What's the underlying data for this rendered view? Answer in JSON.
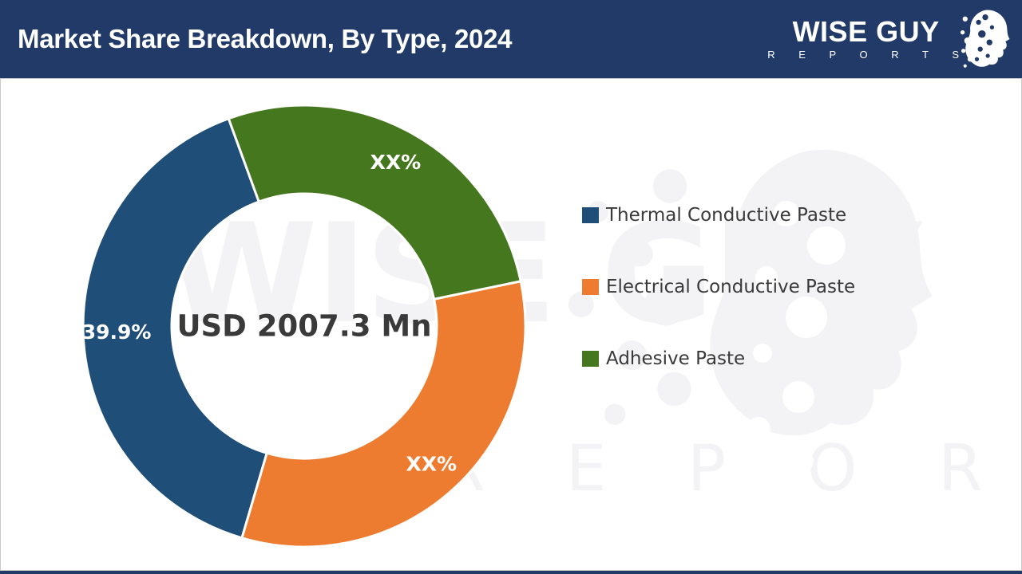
{
  "header": {
    "title": "Market Share Breakdown, By Type, 2024",
    "brand": {
      "name_line": "WISE GUY",
      "reports_line": "R E P O R T S"
    }
  },
  "watermark": {
    "line1": "WISE GUY",
    "line2": "R E P O R T S"
  },
  "chart_data": {
    "type": "pie",
    "subtype": "donut",
    "title": "Market Share Breakdown, By Type, 2024",
    "center_label": "USD 2007.3 Mn",
    "start_angle_deg": 110,
    "direction": "counterclockwise",
    "inner_radius_ratio": 0.6,
    "legend_position": "right",
    "slices": [
      {
        "label": "Thermal Conductive Paste",
        "value_pct": 39.9,
        "display_label": "39.9%",
        "color": "#1F4E78"
      },
      {
        "label": "Electrical Conductive Paste",
        "value_pct": 32.8,
        "display_label": "XX%",
        "color": "#ED7C30"
      },
      {
        "label": "Adhesive Paste",
        "value_pct": 27.3,
        "display_label": "XX%",
        "color": "#45781E"
      }
    ]
  },
  "colors": {
    "header_bg": "#223A67",
    "footer_bg": "#223A67",
    "text_dark": "#3A3A3A",
    "watermark": "#F3F3F5",
    "frame_border": "#C9C9C9",
    "label_on_slice": "#FFFFFF"
  }
}
